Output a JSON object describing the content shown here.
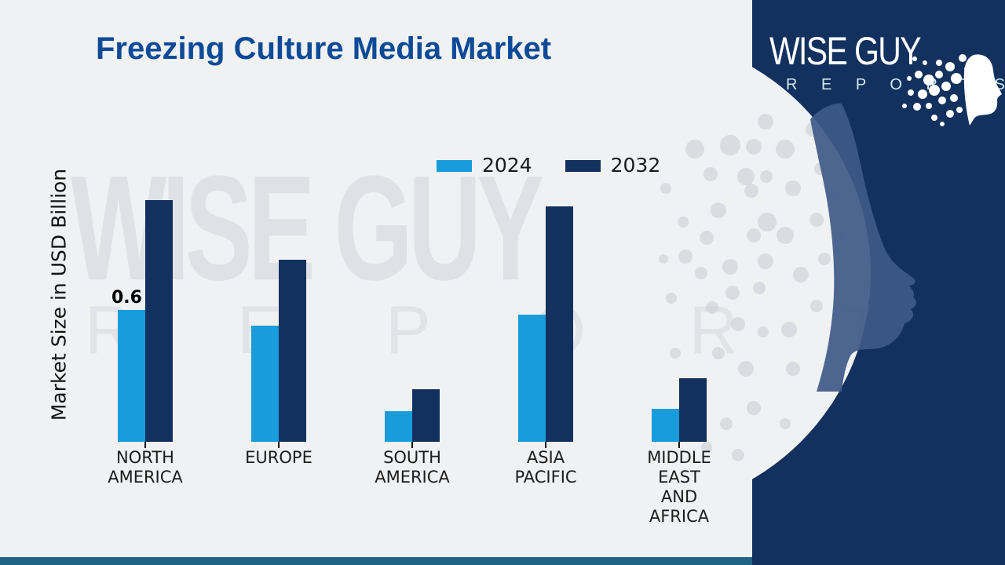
{
  "title": "Freezing Culture Media Market",
  "watermark": {
    "line1": "WISE GUY",
    "line2": "R E P O R T S"
  },
  "logo": {
    "line1": "WISE GUY",
    "line2": "R E P O R T S"
  },
  "colors": {
    "title_blue": "#0d4a97",
    "series_2024": "#189cdc",
    "series_2032": "#12315e",
    "brand_navy": "#12315e",
    "face_profile_blue": "#3e5a88",
    "bottom_bar_teal": "#1d6485",
    "background": "#f0f1f2",
    "watermark_gray": "#dee1e5"
  },
  "chart_data": {
    "type": "bar",
    "title": "Freezing Culture Media Market",
    "xlabel": "",
    "ylabel": "Market Size in USD Billion",
    "unit": "USD Billion",
    "categories": [
      "NORTH AMERICA",
      "EUROPE",
      "SOUTH AMERICA",
      "ASIA PACIFIC",
      "MIDDLE EAST AND AFRICA"
    ],
    "label_lines": [
      [
        "NORTH",
        "AMERICA"
      ],
      [
        "EUROPE"
      ],
      [
        "SOUTH",
        "AMERICA"
      ],
      [
        "ASIA",
        "PACIFIC"
      ],
      [
        "MIDDLE",
        "EAST",
        "AND",
        "AFRICA"
      ]
    ],
    "series": [
      {
        "name": "2024",
        "color": "#189cdc",
        "values": [
          0.6,
          0.53,
          0.14,
          0.58,
          0.15
        ]
      },
      {
        "name": "2032",
        "color": "#12315e",
        "values": [
          1.1,
          0.83,
          0.24,
          1.07,
          0.29
        ]
      }
    ],
    "annotations": [
      {
        "series_index": 0,
        "category_index": 0,
        "text": "0.6"
      }
    ],
    "ylim": [
      0,
      1.2
    ],
    "grid": false,
    "legend_position": "top",
    "value_axis_ticks_visible": false
  }
}
